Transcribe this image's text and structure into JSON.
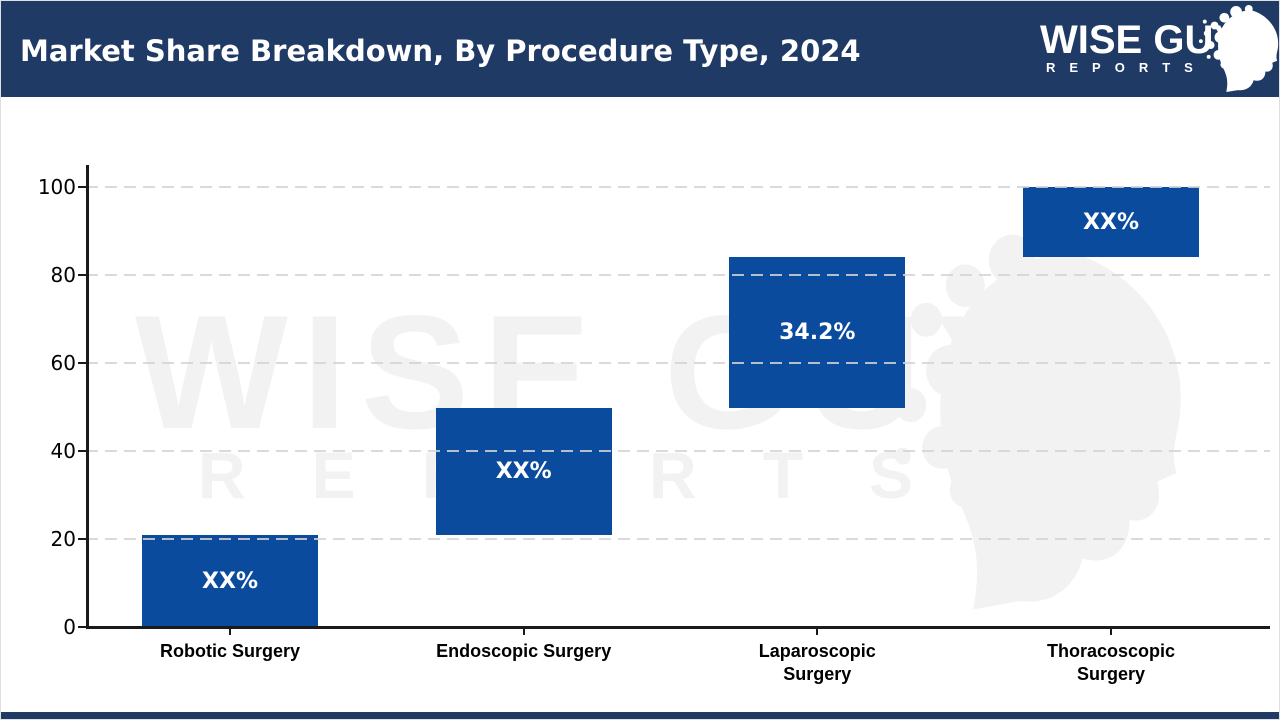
{
  "header": {
    "title": "Market Share Breakdown, By Procedure Type, 2024",
    "logo": {
      "line1": "WISE GUY",
      "line2": "REPORTS"
    }
  },
  "watermark": {
    "line1": "WISE GUY",
    "line2": "REPORTS"
  },
  "colors": {
    "header_bg": "#203A66",
    "bar": "#0A4B9E",
    "watermark": "#f2f2f2",
    "axis": "#1a1a1a"
  },
  "chart_data": {
    "type": "bar",
    "subtype": "floating-waterfall",
    "title": "Market Share Breakdown, By Procedure Type, 2024",
    "categories": [
      "Robotic Surgery",
      "Endoscopic Surgery",
      "Laparoscopic Surgery",
      "Thoracoscopic Surgery"
    ],
    "bars": [
      {
        "label_lines": [
          "Robotic Surgery"
        ],
        "start": 0,
        "end": 20.8,
        "value": 20.8,
        "value_label": "XX%"
      },
      {
        "label_lines": [
          "Endoscopic Surgery"
        ],
        "start": 20.8,
        "end": 49.8,
        "value": 29.0,
        "value_label": "XX%"
      },
      {
        "label_lines": [
          "Laparoscopic",
          "Surgery"
        ],
        "start": 49.8,
        "end": 84.0,
        "value": 34.2,
        "value_label": "34.2%"
      },
      {
        "label_lines": [
          "Thoracoscopic",
          "Surgery"
        ],
        "start": 84.0,
        "end": 100.0,
        "value": 16.0,
        "value_label": "XX%"
      }
    ],
    "xlabel": "",
    "ylabel": "",
    "yticks": [
      0,
      20,
      40,
      60,
      80,
      100
    ],
    "ylim": [
      0,
      105
    ],
    "grid": "dashed-horizontal",
    "legend": "none",
    "bar_color": "#0A4B9E"
  }
}
